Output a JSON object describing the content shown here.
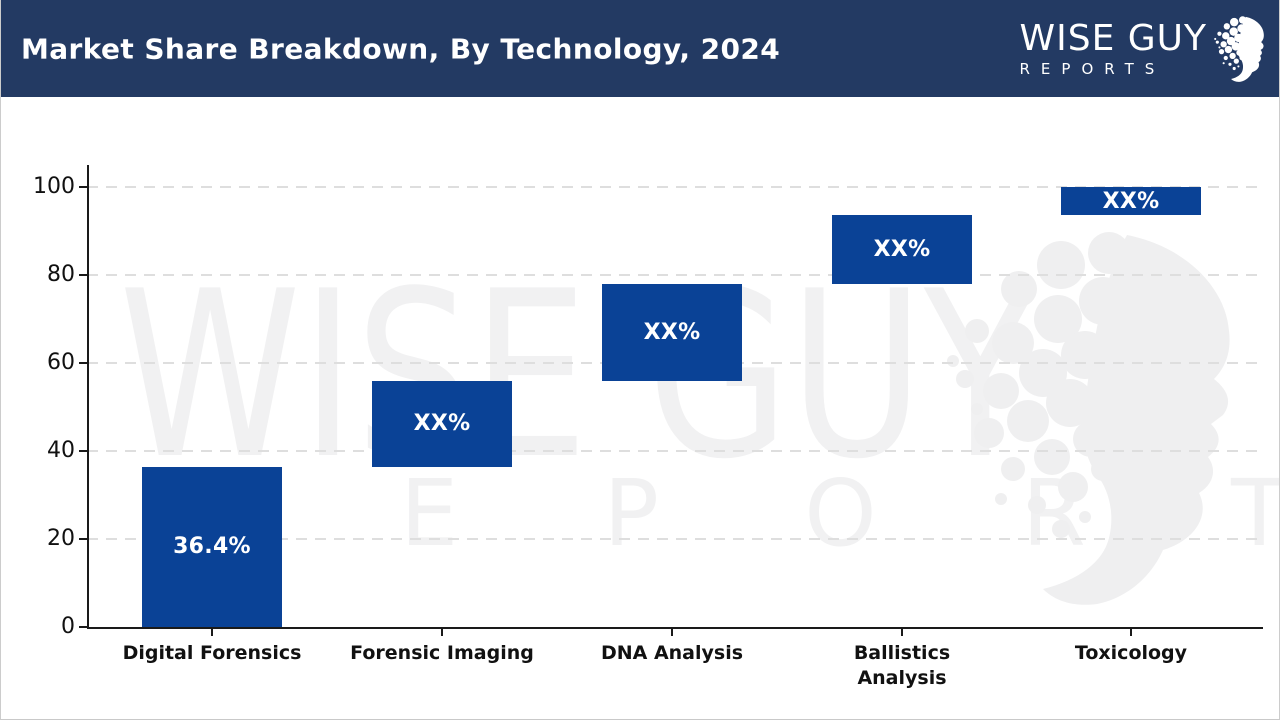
{
  "header": {
    "title": "Market Share Breakdown, By Technology, 2024",
    "brand": {
      "name": "WISE GUY",
      "subtitle": "REPORTS"
    }
  },
  "watermark": {
    "line1": "WISE GUY",
    "line2": "R E P O R T S"
  },
  "colors": {
    "header_bg": "#233A63",
    "bar": "#0A4296",
    "bar_label": "#FFFFFF",
    "grid": "#DEDEDE",
    "axis": "#1A1A1A",
    "watermark": "#F1F1F2"
  },
  "chart_data": {
    "type": "bar",
    "subtype": "floating-waterfall",
    "title": "Market Share Breakdown, By Technology, 2024",
    "categories": [
      "Digital Forensics",
      "Forensic Imaging",
      "DNA Analysis",
      "Ballistics\nAnalysis",
      "Toxicology"
    ],
    "series": [
      {
        "name": "Market share (%)",
        "segments": [
          {
            "category": "Digital Forensics",
            "base": 0,
            "top": 36.4,
            "label": "36.4%"
          },
          {
            "category": "Forensic Imaging",
            "base": 36.4,
            "top": 56,
            "label": "XX%"
          },
          {
            "category": "DNA Analysis",
            "base": 56,
            "top": 78,
            "label": "XX%"
          },
          {
            "category": "Ballistics Analysis",
            "base": 78,
            "top": 93.6,
            "label": "XX%"
          },
          {
            "category": "Toxicology",
            "base": 93.6,
            "top": 100,
            "label": "XX%"
          }
        ]
      }
    ],
    "ylim": [
      0,
      105
    ],
    "yticks": [
      0,
      20,
      40,
      60,
      80,
      100
    ],
    "grid": true,
    "legend": false
  }
}
